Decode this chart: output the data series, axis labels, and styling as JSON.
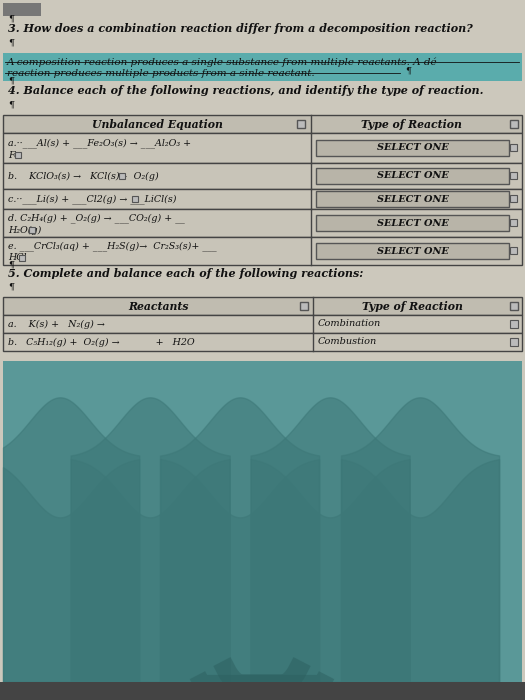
{
  "bg_color": "#1a1a1a",
  "page_bg": "#ccc8bc",
  "page_bg2": "#c8c4b8",
  "text_dark": "#111111",
  "text_color": "#111111",
  "highlight_bg": "#5aacac",
  "highlight_text": "#111111",
  "table_bg": "#c8c4b8",
  "table_header_bg": "#c0bcb0",
  "sel_bg": "#b8b4a8",
  "sel_border": "#555555",
  "wave_teal": "#4a9090",
  "wave_dark": "#2a6868",
  "bottom_bar": "#444444",
  "top_box_color": "#777777",
  "q3_title": "3. How does a combination reaction differ from a decomposition reaction?",
  "pilcrow": "¶",
  "ans_line1": "A composition reaction produces a single substance from multiple reactants. A dé",
  "ans_line2": "reaction produces multiple products from a sinle reactant.",
  "q4_title": "4. Balance each of the following reactions, and identify the type of reaction.",
  "tbl4_hdr": [
    "Unbalanced Equation",
    "Type of Reaction"
  ],
  "tbl4_rows": [
    {
      "col1_line1": "a.··___Al(s) + ___Fe₂O₃(s) → ___Al₂O₃ +",
      "col1_line2": "Fe",
      "col2": "SELECT ONE"
    },
    {
      "col1_line1": "b.    KClO₃(s) →   KCl(s)+  O₂(g)",
      "col1_line2": "",
      "col2": "SELECT ONE"
    },
    {
      "col1_line1": "c.··___Li(s) + ___Cl2(g) → ___LiCl(s)",
      "col1_line2": "",
      "col2": "SELECT ONE"
    },
    {
      "col1_line1": "d. C₂H₄(g) + _O₂(g) → ___CO₂(g) + __",
      "col1_line2": "H₂O(g)",
      "col2": "SELECT ONE"
    },
    {
      "col1_line1": "e. ___CrCl₃(aq) + ___H₂S(g)→  Cr₂S₃(s)+ ___",
      "col1_line2": "HCl",
      "col2": "SELECT ONE"
    }
  ],
  "q5_title": "5. Complete and balance each of the following reactions:",
  "tbl5_hdr": [
    "Reactants",
    "Type of Reaction"
  ],
  "tbl5_rows": [
    {
      "col1": "a.    K(s) +   N₂(g) →",
      "col2": "Combination"
    },
    {
      "col1": "b.   C₅H₁₂(g) +  O₂(g) →            +   H2O",
      "col2": "Combustion"
    }
  ]
}
